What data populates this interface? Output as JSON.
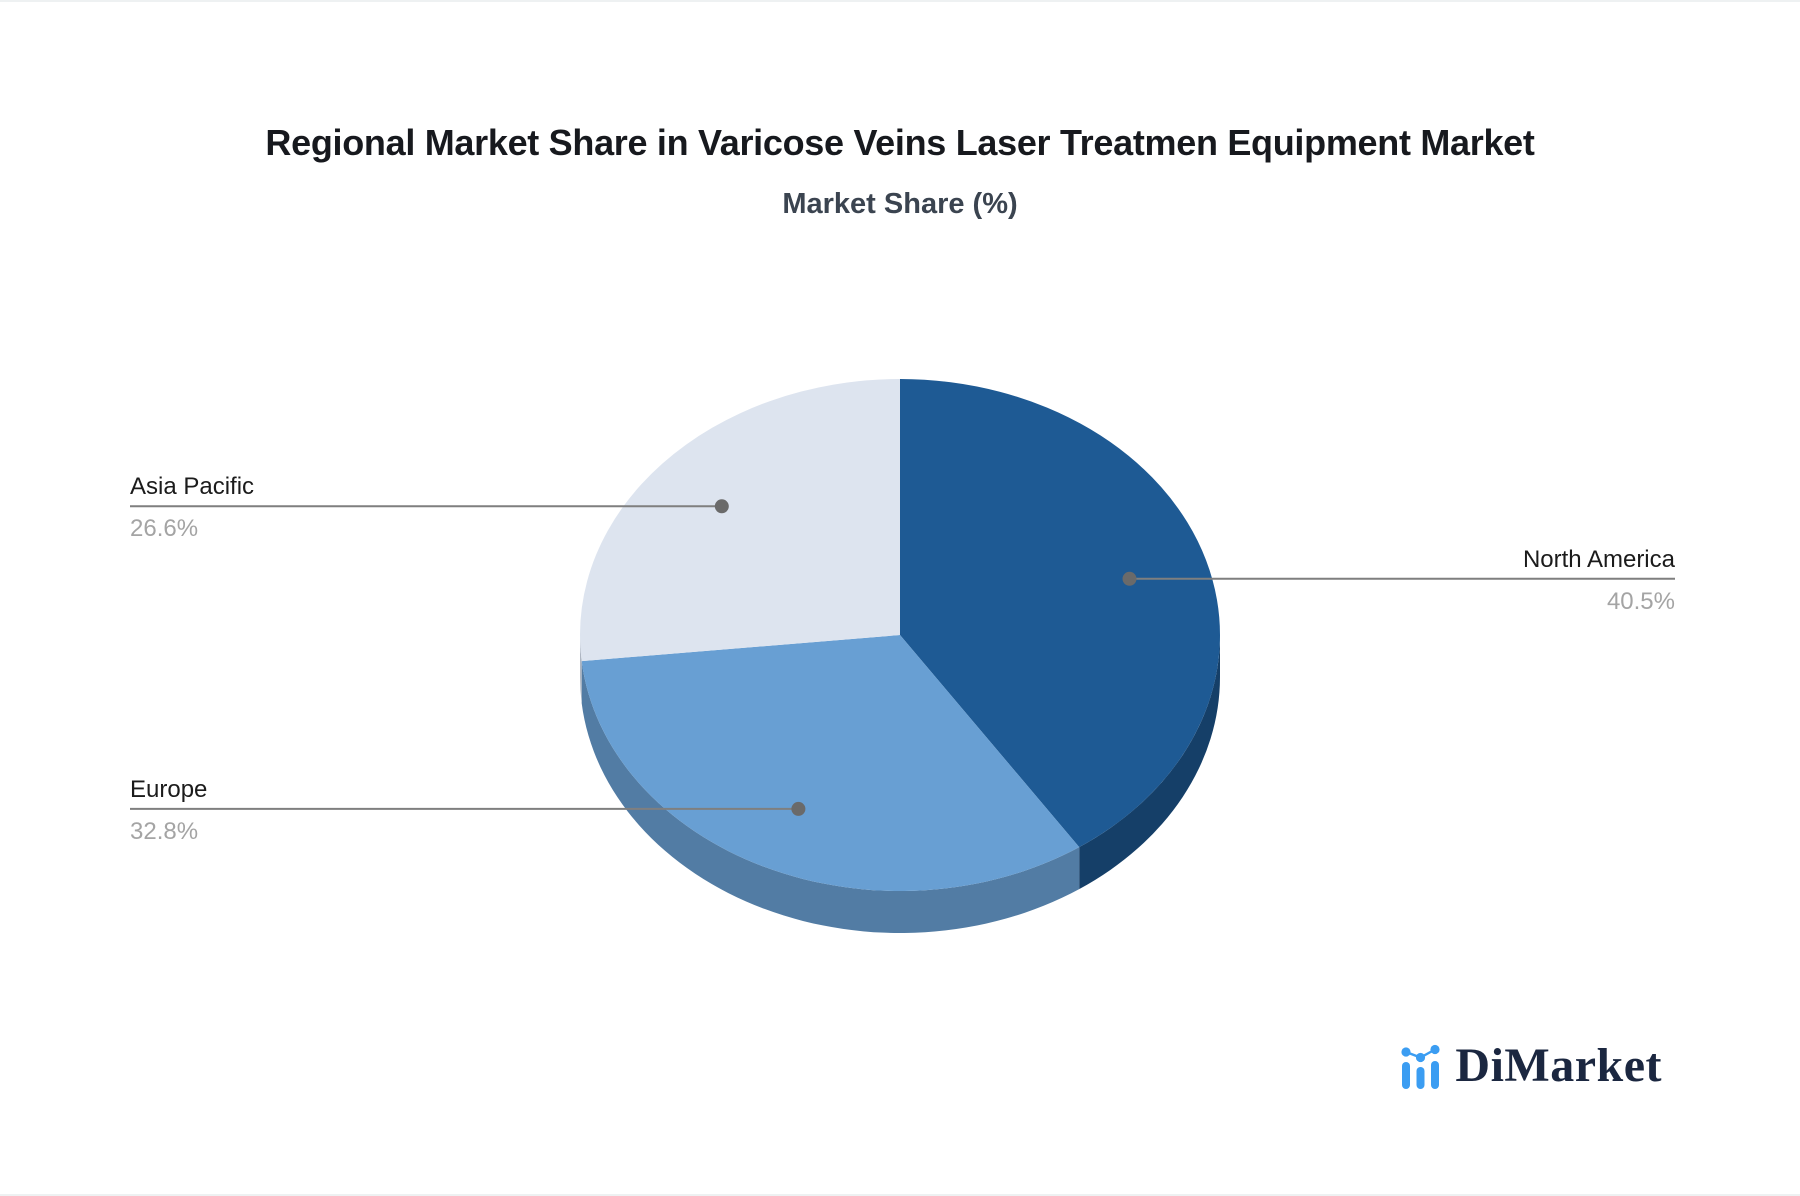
{
  "chart_data": {
    "type": "pie",
    "style": "3d",
    "title": "Regional Market Share in Varicose Veins Laser Treatmen Equipment Market",
    "subtitle": "Market Share (%)",
    "unit": "%",
    "start_angle_deg": -90,
    "direction": "clockwise",
    "slices": [
      {
        "label": "North America",
        "value": 40.5,
        "display_value": "40.5%",
        "color": "#1E5A94",
        "side_color": "#153F68"
      },
      {
        "label": "Europe",
        "value": 32.8,
        "display_value": "32.8%",
        "color": "#689FD3",
        "side_color": "#527CA4"
      },
      {
        "label": "Asia Pacific",
        "value": 26.6,
        "display_value": "26.6%",
        "color": "#DDE4EF",
        "side_color": "#AEB6C2"
      }
    ],
    "label_style": {
      "category_color": "#1B1B1B",
      "value_color": "#A4A4A4",
      "line_color": "#7F7F7F",
      "dot_color": "#6A6A6A"
    },
    "legend": "none",
    "background": "#FFFFFF"
  },
  "branding": {
    "logo_text": "DiMarket",
    "logo_text_color": "#1B2740",
    "icon": "bar-line-chart-icon",
    "icon_color": "#3B9DF2"
  }
}
